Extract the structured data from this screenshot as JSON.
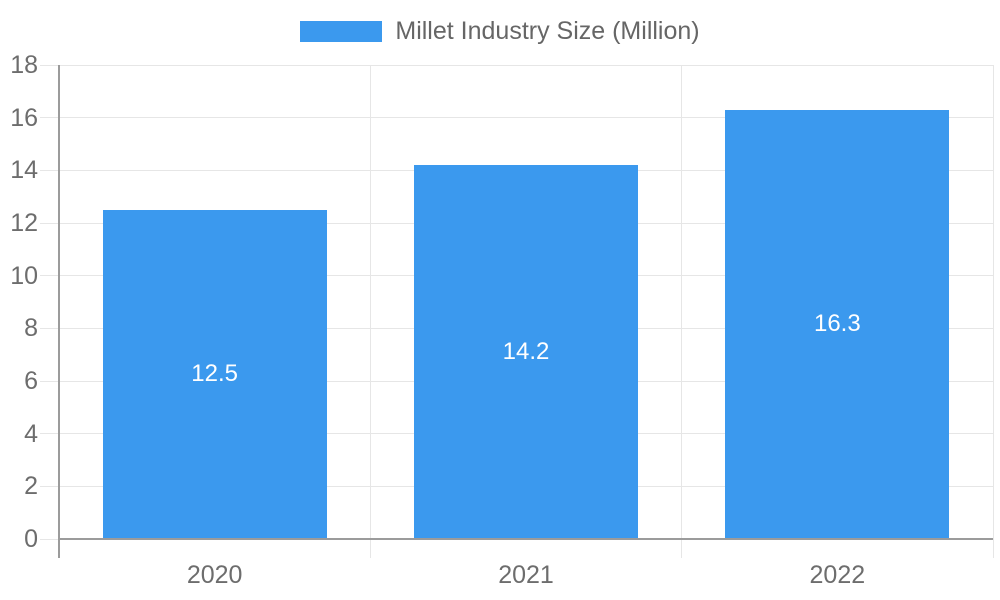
{
  "legend": {
    "label": "Millet Industry Size (Million)"
  },
  "chart_data": {
    "type": "bar",
    "title": "Millet Industry Size (Million)",
    "categories": [
      "2020",
      "2021",
      "2022"
    ],
    "series": [
      {
        "name": "Millet Industry Size (Million)",
        "values": [
          12.5,
          14.2,
          16.3
        ]
      }
    ],
    "value_labels": [
      "12.5",
      "14.2",
      "16.3"
    ],
    "xlabel": "",
    "ylabel": "",
    "ylim": [
      0,
      18
    ],
    "ytick_step": 2,
    "ytick_labels": [
      "0",
      "2",
      "4",
      "6",
      "8",
      "10",
      "12",
      "14",
      "16",
      "18"
    ],
    "grid": true,
    "legend_position": "top-center"
  },
  "colors": {
    "bar": "#3b99ee",
    "gridline": "#e6e6e6",
    "axis": "#9b9b9b",
    "tick_text": "#6d6d6d",
    "legend_text": "#666666",
    "value_text": "#ffffff",
    "background": "#ffffff"
  }
}
